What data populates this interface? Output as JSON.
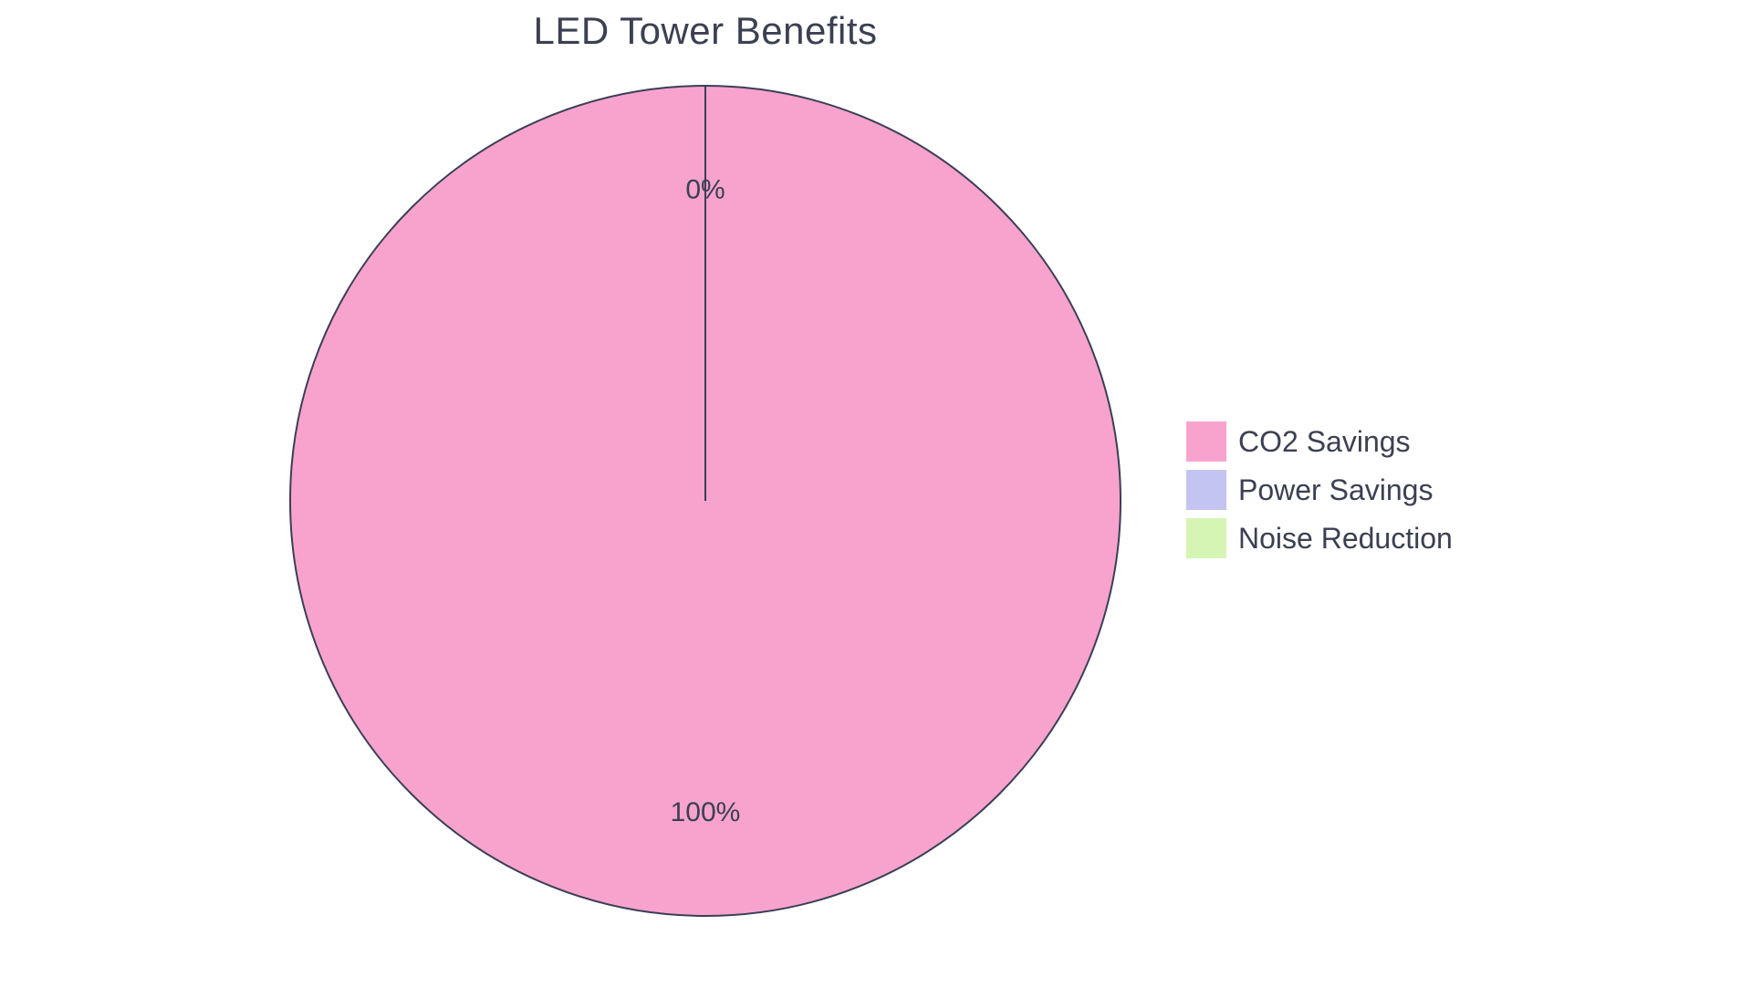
{
  "chart_data": {
    "type": "pie",
    "title": "LED Tower Benefits",
    "labels": [
      "CO2 Savings",
      "Power Savings",
      "Noise Reduction"
    ],
    "values": [
      100,
      0,
      0
    ],
    "percent_labels": [
      "100%",
      "0%",
      "0%"
    ],
    "colors": [
      "#f8a3cd",
      "#c3c4f2",
      "#d5f5b5"
    ],
    "outline_color": "#3a3f55",
    "text_color": "#3b4052",
    "legend_position": "right",
    "start_angle": "top",
    "direction": "clockwise",
    "percent_label_distance": 0.75
  }
}
